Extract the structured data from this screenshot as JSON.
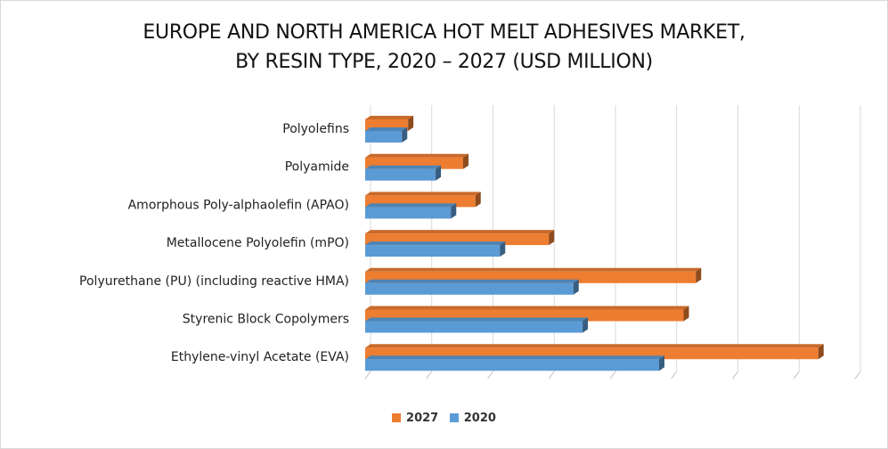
{
  "title_lines": [
    "EUROPE AND NORTH AMERICA HOT MELT ADHESIVES MARKET,",
    "BY RESIN TYPE, 2020 – 2027 (USD MILLION)"
  ],
  "chart_data": {
    "type": "bar",
    "orientation": "horizontal",
    "title": "EUROPE AND NORTH AMERICA HOT MELT ADHESIVES MARKET, BY RESIN TYPE, 2020 – 2027 (USD MILLION)",
    "xlabel": "",
    "ylabel": "",
    "categories": [
      "Polyolefins",
      "Polyamide",
      "Amorphous Poly-alphaolefin (APAO)",
      "Metallocene Polyolefin (mPO)",
      "Polyurethane (PU) (including reactive HMA)",
      "Styrenic Block Copolymers",
      "Ethylene-vinyl Acetate (EVA)"
    ],
    "series": [
      {
        "name": "2027",
        "color": "#ED7D31",
        "values": [
          0.7,
          1.6,
          1.8,
          3.0,
          5.4,
          5.2,
          7.4
        ]
      },
      {
        "name": "2020",
        "color": "#5B9BD5",
        "values": [
          0.6,
          1.15,
          1.4,
          2.2,
          3.4,
          3.55,
          4.8
        ]
      }
    ],
    "xlim": [
      0,
      8
    ],
    "x_tick_labels_shown": false,
    "grid": true,
    "legend_position": "bottom",
    "style": "3d-clustered-bar"
  }
}
